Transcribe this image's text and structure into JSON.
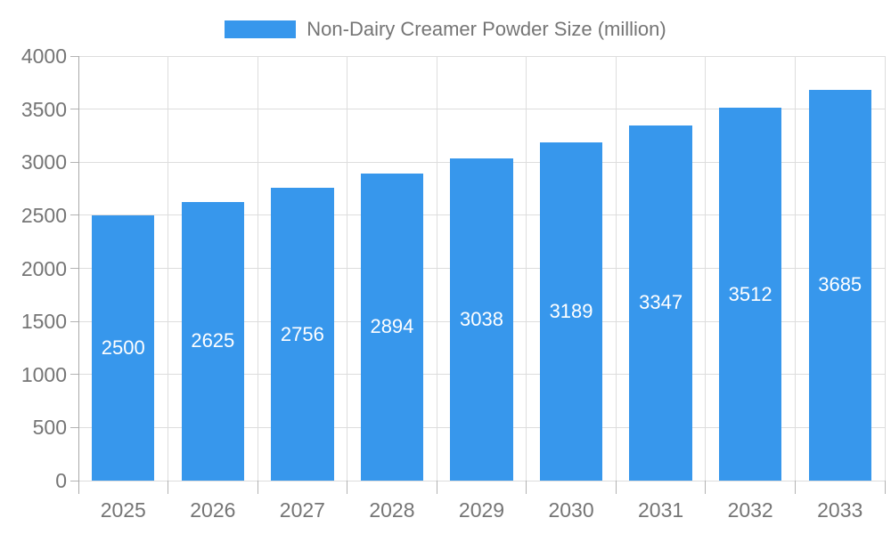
{
  "chart_data": {
    "type": "bar",
    "title": "Non-Dairy Creamer Powder Size (million)",
    "categories": [
      "2025",
      "2026",
      "2027",
      "2028",
      "2029",
      "2030",
      "2031",
      "2032",
      "2033"
    ],
    "values": [
      2500,
      2625,
      2756,
      2894,
      3038,
      3189,
      3347,
      3512,
      3685
    ],
    "value_labels": [
      "2500",
      "2625",
      "2756",
      "2894",
      "3038",
      "3189",
      "3347",
      "3512",
      "3685"
    ],
    "xlabel": "",
    "ylabel": "",
    "ylim": [
      0,
      4000
    ],
    "ytick_step": 500,
    "ytick_labels": [
      "0",
      "500",
      "1000",
      "1500",
      "2000",
      "2500",
      "3000",
      "3500",
      "4000"
    ],
    "grid": true,
    "legend_position": "top",
    "colors": {
      "bar": "#3797EC",
      "bar_value_text": "#ffffff",
      "axis_text": "#757575",
      "gridline": "#dddddd",
      "axis_line": "#aaaaaa",
      "tick": "#b3b3b3",
      "background": "#ffffff"
    }
  }
}
